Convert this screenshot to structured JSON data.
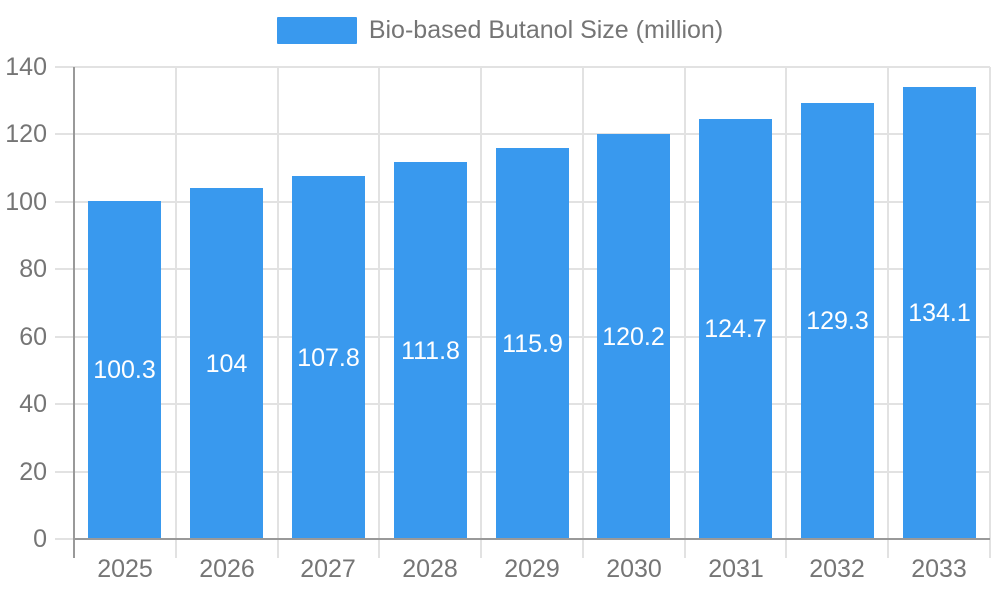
{
  "legend": {
    "label": "Bio-based Butanol Size (million)"
  },
  "chart_data": {
    "type": "bar",
    "title": "",
    "xlabel": "",
    "ylabel": "",
    "categories": [
      "2025",
      "2026",
      "2027",
      "2028",
      "2029",
      "2030",
      "2031",
      "2032",
      "2033"
    ],
    "series": [
      {
        "name": "Bio-based Butanol Size (million)",
        "values": [
          100.3,
          104,
          107.8,
          111.8,
          115.9,
          120.2,
          124.7,
          129.3,
          134.1
        ]
      }
    ],
    "value_labels": [
      "100.3",
      "104",
      "107.8",
      "111.8",
      "115.9",
      "120.2",
      "124.7",
      "129.3",
      "134.1"
    ],
    "yticks": [
      0,
      20,
      40,
      60,
      80,
      100,
      120,
      140
    ],
    "ylim": [
      0,
      140
    ],
    "grid": true,
    "legend_position": "top",
    "value_label_position": "inside-center"
  },
  "colors": {
    "bar": "#3999EE",
    "axis_line": "#999999",
    "grid_line": "#E2E2E2",
    "tick_line": "#E2E2E2",
    "axis_text": "#757575",
    "legend_text": "#757575",
    "value_text": "#FFFFFF",
    "background": "#FFFFFF"
  }
}
